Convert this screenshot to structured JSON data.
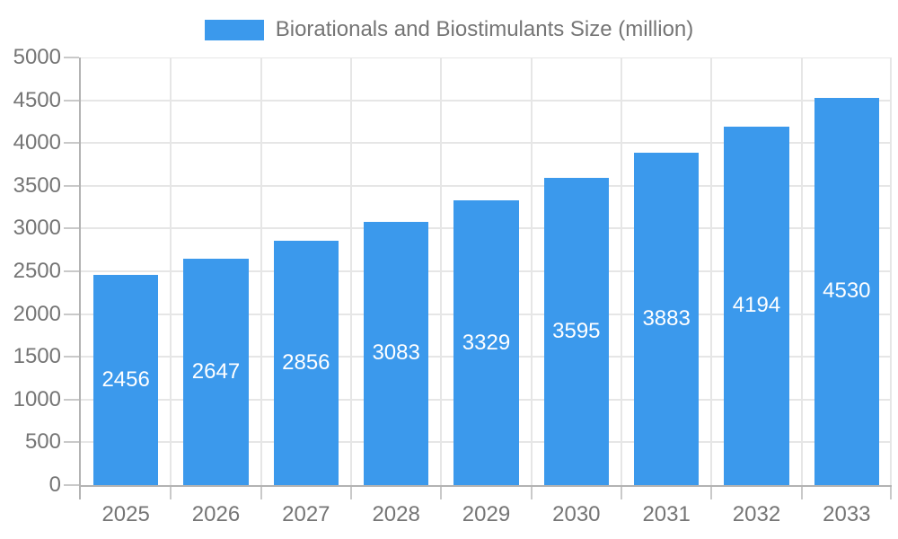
{
  "legend": {
    "label": "Biorationals and Biostimulants Size (million)"
  },
  "chart_data": {
    "type": "bar",
    "title": "Biorationals and Biostimulants Size (million)",
    "categories": [
      "2025",
      "2026",
      "2027",
      "2028",
      "2029",
      "2030",
      "2031",
      "2032",
      "2033"
    ],
    "values": [
      2456,
      2647,
      2856,
      3083,
      3329,
      3595,
      3883,
      4194,
      4530
    ],
    "xlabel": "",
    "ylabel": "",
    "ylim": [
      0,
      5000
    ],
    "ytick_step": 500,
    "legend_position": "top-center",
    "grid": true,
    "value_labels": "centered-inside-bars",
    "colors": {
      "bar": "#3b99ec",
      "value_label": "#ffffff",
      "axis_line": "#b3b3b3",
      "gridline": "#e6e6e6",
      "tick": "#c9c9c9",
      "text": "#757575",
      "background": "#ffffff"
    }
  }
}
